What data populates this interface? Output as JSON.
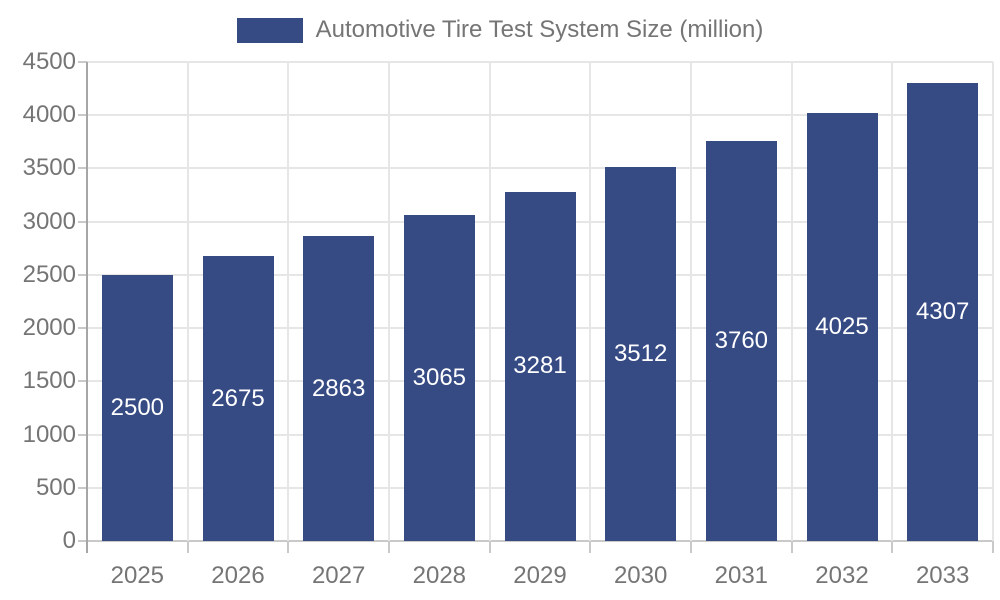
{
  "legend": {
    "label": "Automotive Tire Test System Size (million)"
  },
  "colors": {
    "bar": "#364a84",
    "axis_label": "#757575",
    "value_label": "#ffffff",
    "gridline": "#e6e6e6",
    "axis_line": "#a6a6a6",
    "tick": "#c9c9c9",
    "background": "#ffffff"
  },
  "chart_data": {
    "type": "bar",
    "title": "Automotive Tire Test System Size (million)",
    "series_name": "Automotive Tire Test System Size (million)",
    "categories": [
      "2025",
      "2026",
      "2027",
      "2028",
      "2029",
      "2030",
      "2031",
      "2032",
      "2033"
    ],
    "values": [
      2500,
      2675,
      2863,
      3065,
      3281,
      3512,
      3760,
      4025,
      4307
    ],
    "value_labels": [
      "2500",
      "2675",
      "2863",
      "3065",
      "3281",
      "3512",
      "3760",
      "4025",
      "4307"
    ],
    "xlabel": "",
    "ylabel": "",
    "ylim": [
      0,
      4500
    ],
    "yticks": [
      0,
      500,
      1000,
      1500,
      2000,
      2500,
      3000,
      3500,
      4000,
      4500
    ],
    "grid": true,
    "legend_position": "top",
    "value_label_position": "inside-middle"
  }
}
